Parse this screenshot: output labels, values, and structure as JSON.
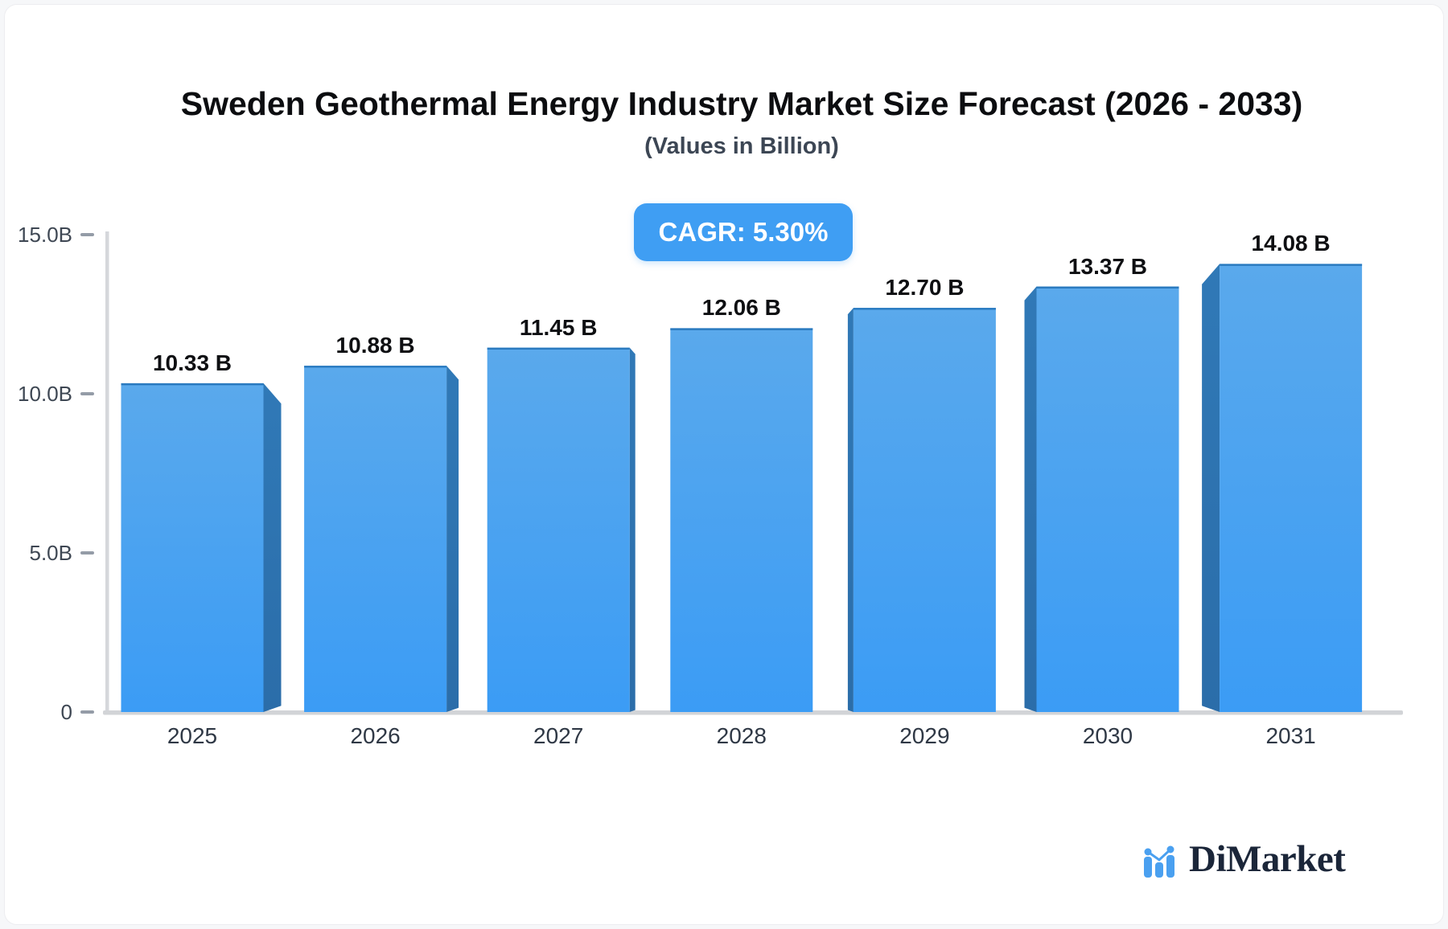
{
  "header": {
    "title": "Sweden Geothermal Energy Industry Market Size Forecast (2026 - 2033)",
    "subtitle": "(Values in Billion)"
  },
  "badge": {
    "label": "CAGR: 5.30%",
    "background": "#3f9ef3",
    "text_color": "#ffffff"
  },
  "chart_data": {
    "type": "bar",
    "title": "Sweden Geothermal Energy Industry Market Size Forecast (2026 - 2033)",
    "subtitle": "(Values in Billion)",
    "categories": [
      "2025",
      "2026",
      "2027",
      "2028",
      "2029",
      "2030",
      "2031"
    ],
    "values": [
      10.33,
      10.88,
      11.45,
      12.06,
      12.7,
      13.37,
      14.08
    ],
    "bar_labels": [
      "10.33 B",
      "10.88 B",
      "11.45 B",
      "12.06 B",
      "12.70 B",
      "13.37 B",
      "14.08 B"
    ],
    "xlabel": "",
    "ylabel": "",
    "ylim": [
      0,
      15
    ],
    "y_ticks": [
      {
        "value": 0,
        "label": "0"
      },
      {
        "value": 5,
        "label": "5.0B"
      },
      {
        "value": 10,
        "label": "10.0B"
      },
      {
        "value": 15,
        "label": "15.0B"
      }
    ],
    "grid": false,
    "legend": false,
    "style": "3d-perspective-columns",
    "colors": {
      "face_top": "#5aa9ec",
      "face_bottom": "#3b9cf5",
      "side_top": "#3079b7",
      "side_bottom": "#2b6da9",
      "top_edge": "#2a7abf",
      "axis_line": "#d5d7db",
      "baseline": "#d2d4d7"
    }
  },
  "logo": {
    "text": "DiMarket",
    "icon": "bar-chart-trend-icon",
    "text_color": "#1b2639",
    "icon_color": "#4aa0f0"
  }
}
